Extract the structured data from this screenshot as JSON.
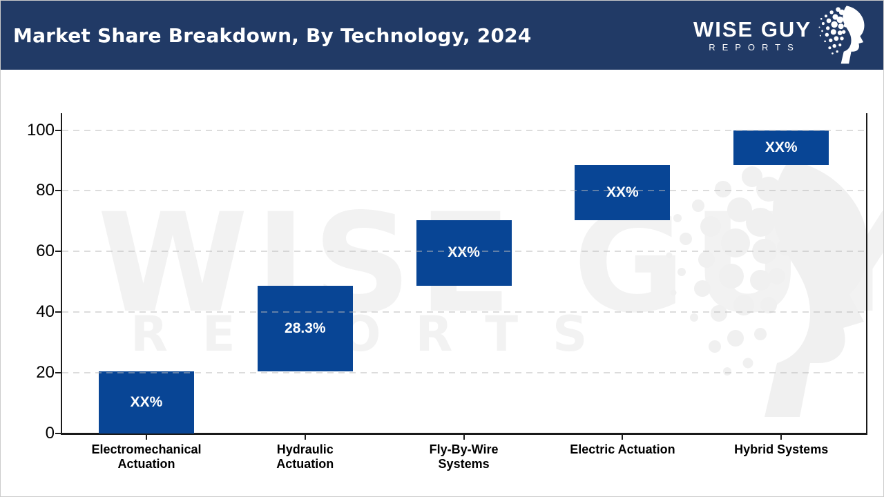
{
  "header": {
    "title": "Market Share Breakdown, By Technology, 2024",
    "background": "#213a66",
    "logo": {
      "wordmark": "WISE GUY",
      "subtext": "REPORTS"
    }
  },
  "watermark": {
    "wordmark": "WISE GUY",
    "subtext": "REPORTS"
  },
  "chart_data": {
    "type": "bar",
    "variant": "waterfall",
    "title": "Market Share Breakdown, By Technology, 2024",
    "categories": [
      "Electromechanical Actuation",
      "Hydraulic Actuation",
      "Fly-By-Wire Systems",
      "Electric Actuation",
      "Hybrid Systems"
    ],
    "category_lines": [
      "Electromechanical\nActuation",
      "Hydraulic\nActuation",
      "Fly-By-Wire\nSystems",
      "Electric Actuation",
      "Hybrid Systems"
    ],
    "segments": [
      {
        "category": "Electromechanical Actuation",
        "start": 0,
        "end": 20.5,
        "value_label": "XX%"
      },
      {
        "category": "Hydraulic Actuation",
        "start": 20.5,
        "end": 48.8,
        "value_label": "28.3%"
      },
      {
        "category": "Fly-By-Wire Systems",
        "start": 48.8,
        "end": 70.3,
        "value_label": "XX%"
      },
      {
        "category": "Electric Actuation",
        "start": 70.3,
        "end": 88.5,
        "value_label": "XX%"
      },
      {
        "category": "Hybrid Systems",
        "start": 88.5,
        "end": 100,
        "value_label": "XX%"
      }
    ],
    "ylabel": "",
    "xlabel": "",
    "yticks": [
      0,
      20,
      40,
      60,
      80,
      100
    ],
    "ylim": [
      0,
      105
    ],
    "grid": {
      "horizontal": true,
      "style": "dashed"
    },
    "legend": null,
    "colors": {
      "bar": "#084595",
      "axis": "#1a1a1a",
      "gridline": "#b9b9b9",
      "bar_label": "#ffffff",
      "tick_label": "#000000"
    }
  }
}
